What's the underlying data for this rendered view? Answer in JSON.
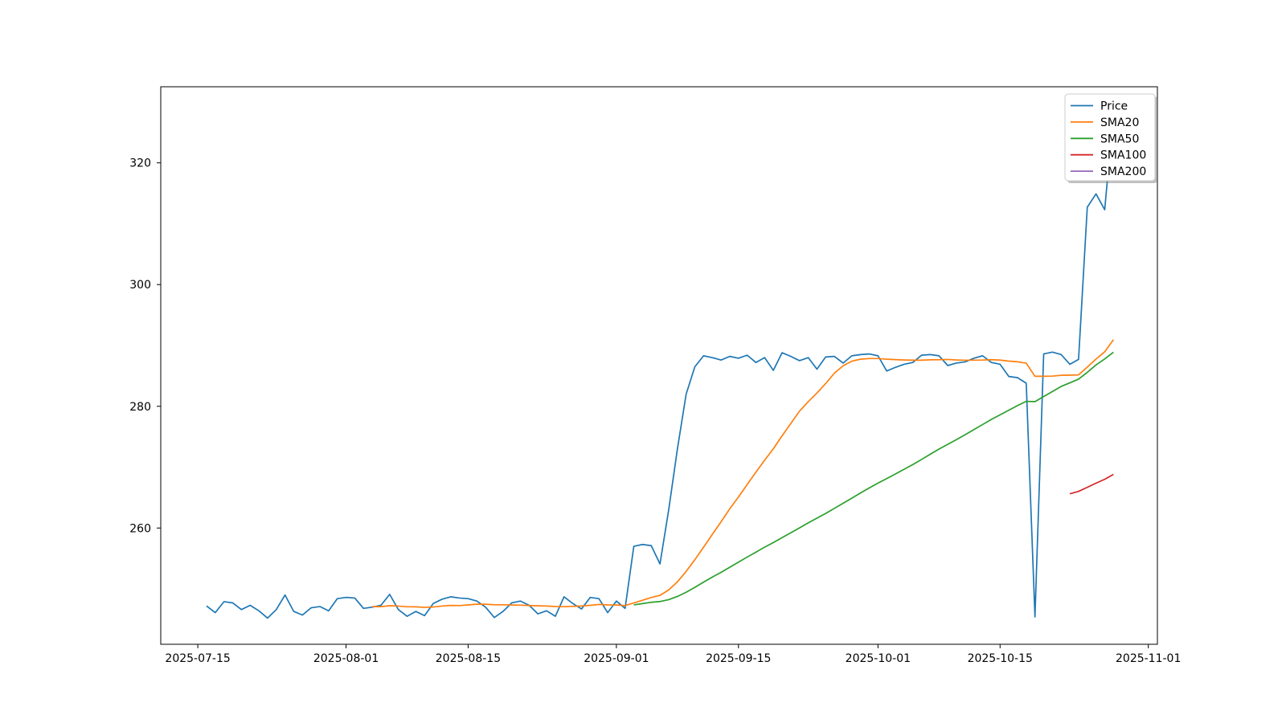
{
  "chart_data": {
    "type": "line",
    "title": "",
    "xlabel": "",
    "ylabel": "",
    "grid": false,
    "legend_position": "upper right",
    "start_date": "2025-07-16",
    "frequency": "daily",
    "price": [
      247.2,
      246.1,
      247.9,
      247.7,
      246.6,
      247.3,
      246.4,
      245.2,
      246.6,
      249.0,
      246.3,
      245.7,
      246.9,
      247.1,
      246.4,
      248.4,
      248.6,
      248.5,
      246.8,
      247.0,
      247.3,
      249.1,
      246.6,
      245.5,
      246.3,
      245.6,
      247.6,
      248.3,
      248.7,
      248.5,
      248.4,
      248.0,
      247.0,
      245.3,
      246.3,
      247.7,
      248.0,
      247.3,
      245.9,
      246.4,
      245.5,
      248.7,
      247.6,
      246.7,
      248.6,
      248.4,
      246.1,
      248.0,
      246.8,
      257.0,
      257.3,
      257.1,
      254.1,
      263.0,
      273.0,
      282.0,
      286.5,
      288.3,
      288.0,
      287.6,
      288.2,
      287.9,
      288.4,
      287.2,
      288.0,
      285.9,
      288.8,
      288.2,
      287.5,
      288.0,
      286.1,
      288.1,
      288.2,
      287.1,
      288.3,
      288.5,
      288.6,
      288.3,
      285.8,
      286.4,
      286.9,
      287.2,
      288.4,
      288.5,
      288.3,
      286.7,
      287.1,
      287.3,
      287.9,
      288.3,
      287.2,
      286.9,
      284.9,
      284.7,
      283.8,
      245.4,
      288.6,
      288.9,
      288.5,
      286.9,
      287.7,
      312.7,
      314.9,
      312.3,
      328.2
    ],
    "series": [
      {
        "name": "Price",
        "color": "#1f77b4",
        "kind": "raw",
        "window": 1
      },
      {
        "name": "SMA20",
        "color": "#ff7f0e",
        "kind": "sma",
        "window": 20
      },
      {
        "name": "SMA50",
        "color": "#2ca02c",
        "kind": "sma",
        "window": 50
      },
      {
        "name": "SMA100",
        "color": "#d62728",
        "kind": "sma",
        "window": 100
      },
      {
        "name": "SMA200",
        "color": "#9467bd",
        "kind": "sma",
        "window": 200
      }
    ],
    "x_ticks": [
      "2025-07-15",
      "2025-08-01",
      "2025-08-15",
      "2025-09-01",
      "2025-09-15",
      "2025-10-01",
      "2025-10-15",
      "2025-11-01"
    ],
    "y_ticks": [
      260,
      280,
      300,
      320
    ],
    "x_range": [
      "2025-07-10T18:00:00",
      "2025-11-02T01:00:00"
    ],
    "y_range": [
      240.9,
      332.5
    ]
  }
}
